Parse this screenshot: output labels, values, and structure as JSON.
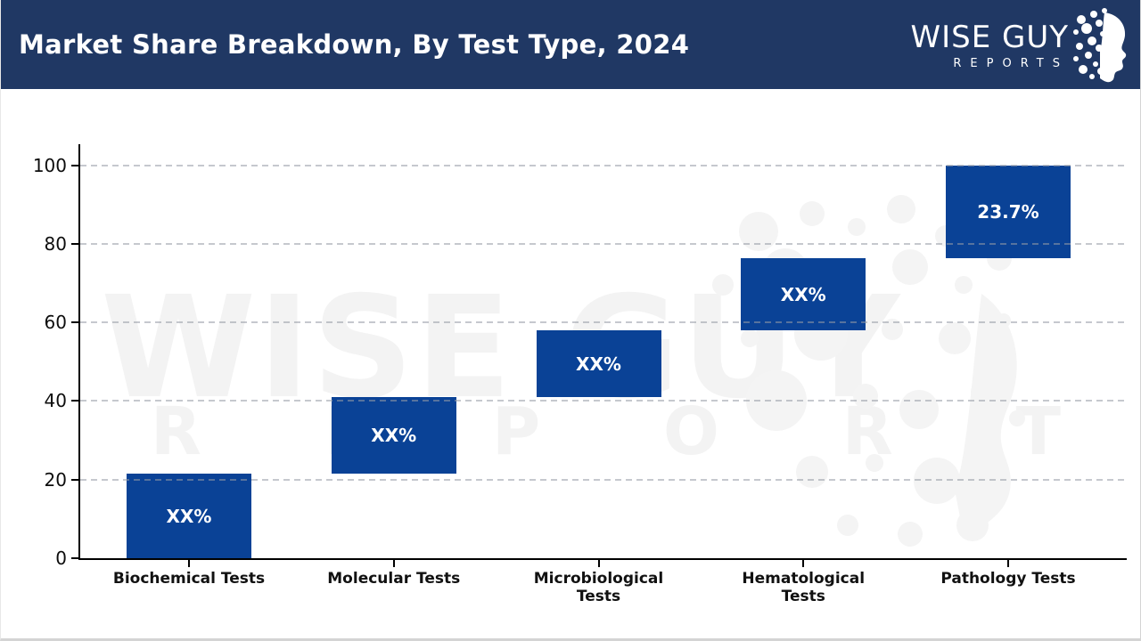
{
  "header": {
    "title": "Market Share Breakdown, By Test Type, 2024",
    "logo": {
      "line1": "WISE GUY",
      "line2": "REPORTS"
    }
  },
  "watermark": {
    "line1": "WISE GUY",
    "line2": "REPORTS"
  },
  "colors": {
    "header_bg": "#203864",
    "bar": "#0a4296",
    "bar_label": "#ffffff",
    "axis": "#000000",
    "grid": "#c9cdd4",
    "watermark": "#f3f3f3"
  },
  "chart_data": {
    "type": "bar",
    "subtype": "waterfall",
    "title": "Market Share Breakdown, By Test Type, 2024",
    "xlabel": "",
    "ylabel": "",
    "ylim": [
      0,
      105
    ],
    "yticks": [
      0,
      20,
      40,
      60,
      80,
      100
    ],
    "grid": "horizontal dashed",
    "legend": "none",
    "bar_color": "#0a4296",
    "categories": [
      "Biochemical Tests",
      "Molecular Tests",
      "Microbiological Tests",
      "Hematological Tests",
      "Pathology Tests"
    ],
    "segments": [
      {
        "category": "Biochemical Tests",
        "start": 0,
        "end": 21.5,
        "label": "XX%"
      },
      {
        "category": "Molecular Tests",
        "start": 21.5,
        "end": 41.0,
        "label": "XX%"
      },
      {
        "category": "Microbiological Tests",
        "start": 41.0,
        "end": 58.0,
        "label": "XX%"
      },
      {
        "category": "Hematological Tests",
        "start": 58.0,
        "end": 76.3,
        "label": "XX%"
      },
      {
        "category": "Pathology Tests",
        "start": 76.3,
        "end": 100,
        "label": "23.7%"
      }
    ]
  }
}
